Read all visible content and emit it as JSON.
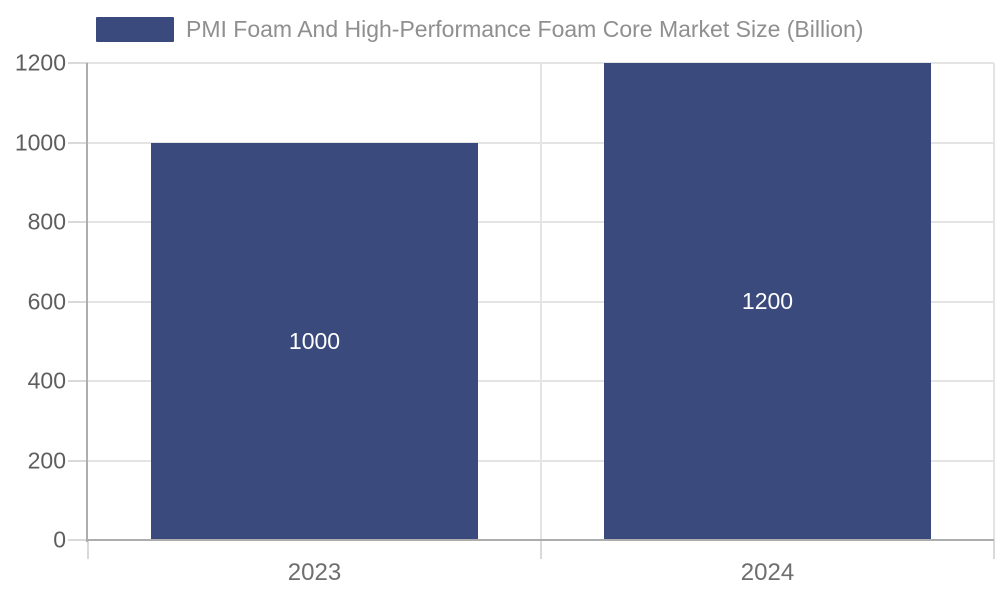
{
  "chart_data": {
    "type": "bar",
    "title": "PMI Foam And High-Performance Foam Core Market Size (Billion)",
    "legend": [
      "PMI Foam And High-Performance Foam Core Market Size (Billion)"
    ],
    "legend_position": "top-left",
    "categories": [
      "2023",
      "2024"
    ],
    "series": [
      {
        "name": "PMI Foam And High-Performance Foam Core Market Size (Billion)",
        "values": [
          1000,
          1200
        ]
      }
    ],
    "values": [
      1000,
      1200
    ],
    "value_labels": [
      "1000",
      "1200"
    ],
    "xlabel": "",
    "ylabel": "",
    "ylim": [
      0,
      1200
    ],
    "yticks": [
      0,
      200,
      400,
      600,
      800,
      1000,
      1200
    ],
    "grid": true,
    "colors": {
      "bar": "#3A4A7D",
      "value_label_text": "#FFFFFF",
      "legend_text": "#8F8F8F",
      "y_axis_text": "#5E5E5E",
      "x_axis_text": "#6E6E6E",
      "axis_line": "#ADADAD",
      "gridline": "#E4E4E4",
      "background": "#FFFFFF"
    }
  }
}
